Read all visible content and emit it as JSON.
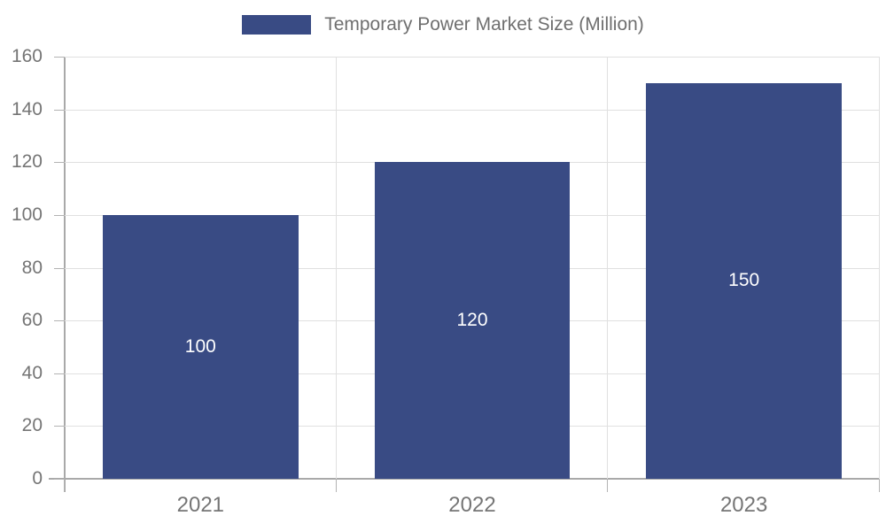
{
  "legend": {
    "label": "Temporary Power Market Size (Million)"
  },
  "chart_data": {
    "type": "bar",
    "title": "Temporary Power Market Size (Million)",
    "categories": [
      "2021",
      "2022",
      "2023"
    ],
    "series": [
      {
        "name": "Temporary Power Market Size (Million)",
        "values": [
          100,
          120,
          150
        ]
      }
    ],
    "bar_value_labels": [
      "100",
      "120",
      "150"
    ],
    "xlabel": "",
    "ylabel": "",
    "ylim": [
      0,
      160
    ],
    "yticks": [
      0,
      20,
      40,
      60,
      80,
      100,
      120,
      140,
      160
    ],
    "grid": true,
    "legend_position": "top-center",
    "bar_width_ratio": 0.72
  },
  "colors": {
    "bar": "#394b84",
    "bar_label": "#ffffff",
    "grid": "#e0e0e0",
    "axis_line": "#a9a9a9",
    "tick": "#b3b3b3",
    "axis_label": "#757575",
    "legend_text": "#6f6f6f",
    "background": "#ffffff"
  }
}
